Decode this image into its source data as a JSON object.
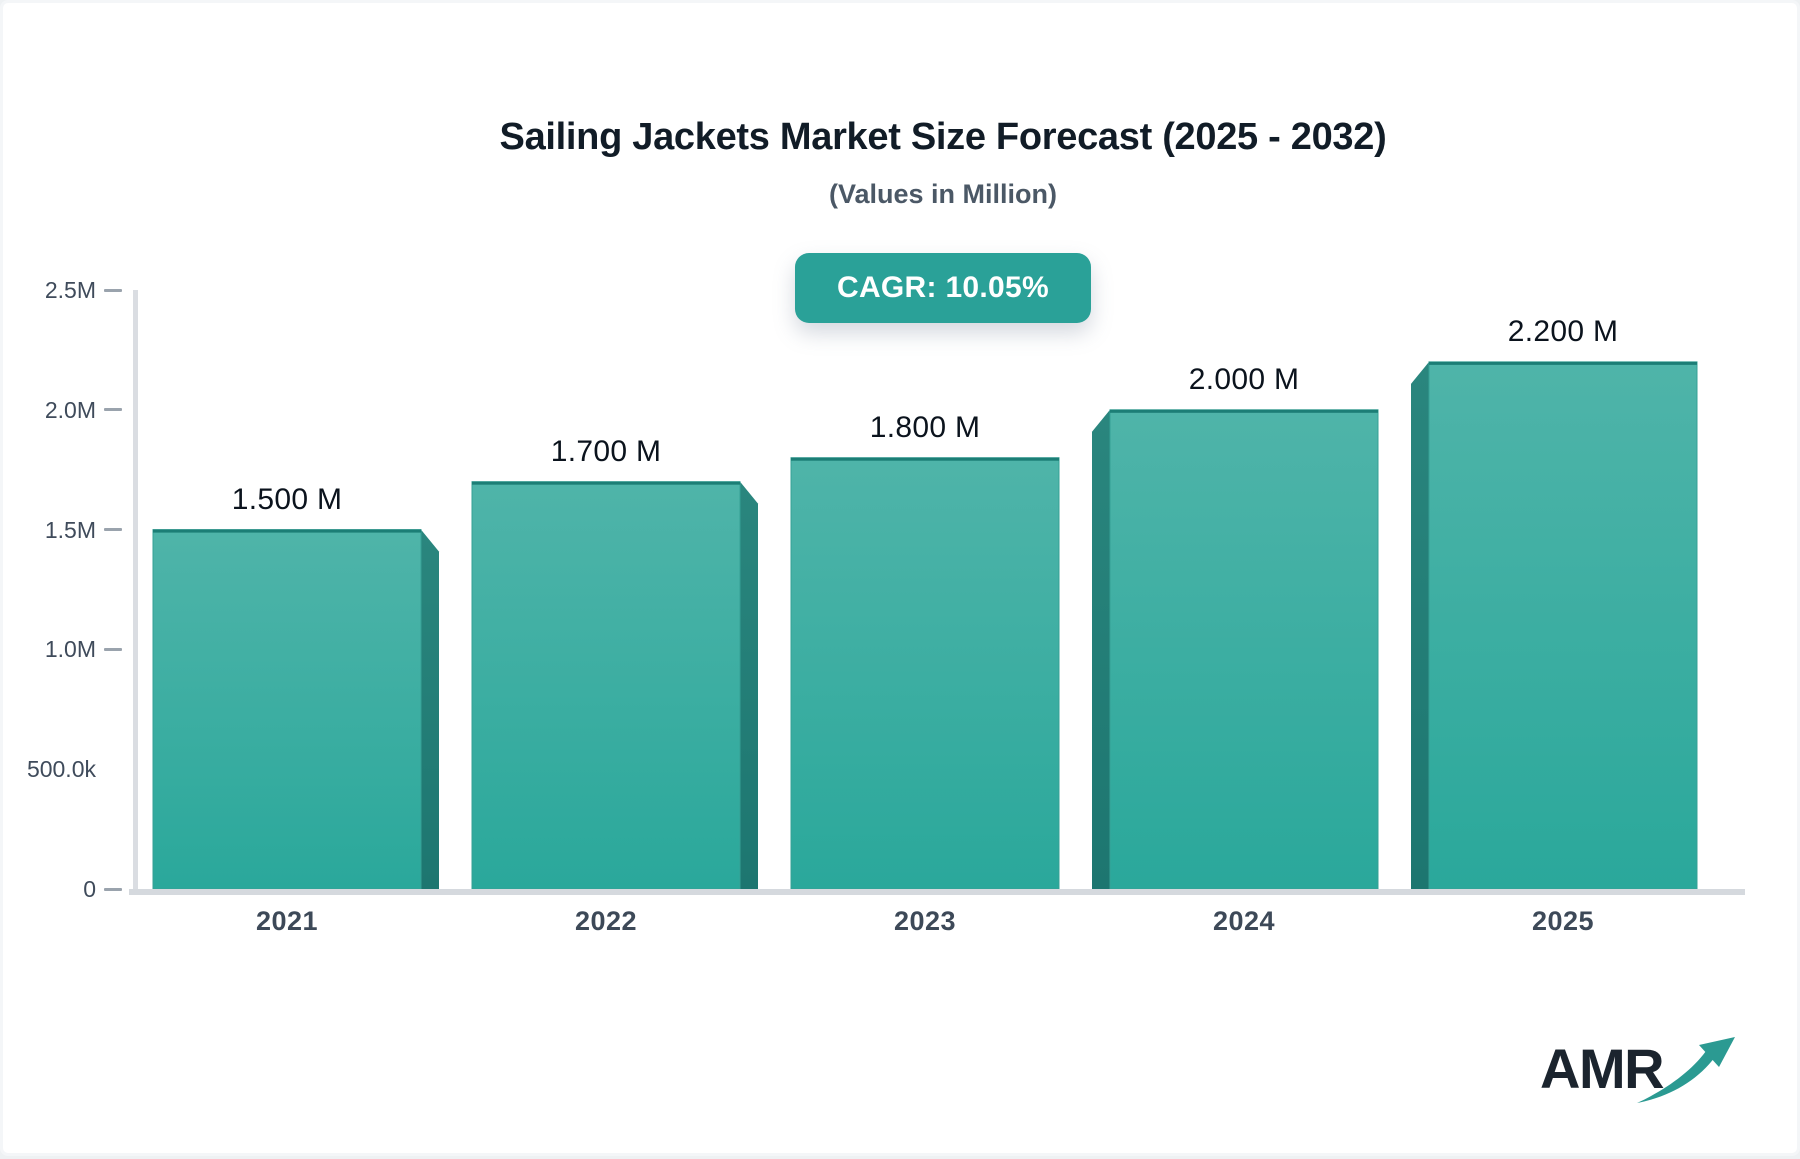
{
  "header": {
    "title": "Sailing Jackets Market Size Forecast (2025 - 2032)",
    "subtitle": "(Values in Million)",
    "cagr_label": "CAGR: 10.05%"
  },
  "chart_data": {
    "type": "bar",
    "title": "Sailing Jackets Market Size Forecast (2025 - 2032)",
    "subtitle": "(Values in Million)",
    "categories": [
      "2021",
      "2022",
      "2023",
      "2024",
      "2025"
    ],
    "values": [
      1500000,
      1700000,
      1800000,
      2000000,
      2200000
    ],
    "bar_labels": [
      "1.500 M",
      "1.700 M",
      "1.800 M",
      "2.000 M",
      "2.200 M"
    ],
    "xlabel": "",
    "ylabel": "",
    "ylim": [
      0,
      2500000
    ],
    "yticks": [
      {
        "value": 0,
        "label": "0",
        "tick": true
      },
      {
        "value": 500000,
        "label": "500.0k",
        "tick": false
      },
      {
        "value": 1000000,
        "label": "1.0M",
        "tick": true
      },
      {
        "value": 1500000,
        "label": "1.5M",
        "tick": true
      },
      {
        "value": 2000000,
        "label": "2.0M",
        "tick": true
      },
      {
        "value": 2500000,
        "label": "2.5M",
        "tick": true
      }
    ],
    "grid": false,
    "legend": false,
    "annotation": "CAGR: 10.05%"
  },
  "colors": {
    "bar_top": "#4fb4a9",
    "bar_bottom": "#2aa89b",
    "bar_top_edge": "#1c7e76",
    "bar_side_top": "#2a867e",
    "bar_side_bottom": "#1d7670",
    "bar_stroke": "#35a095",
    "axis_line": "#dadde2",
    "tick": "#9aa3ad",
    "axis_text": "#3f4b5b",
    "value_text": "#0b131d",
    "badge_bg": "#2aa198",
    "badge_text": "#ffffff",
    "logo_text": "#1b242e",
    "logo_arrow": "#2b9a92"
  },
  "logo": {
    "text": "AMR"
  }
}
